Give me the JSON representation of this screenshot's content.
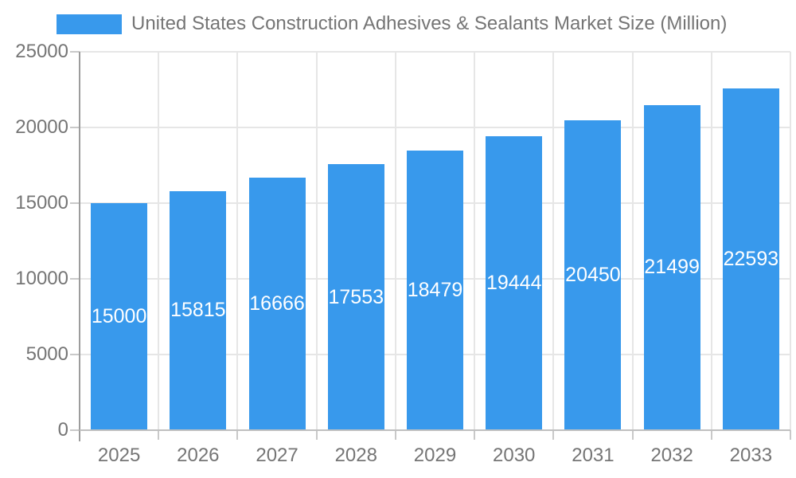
{
  "legend": {
    "label": "United States Construction Adhesives & Sealants Market Size (Million)"
  },
  "chart_data": {
    "type": "bar",
    "title": "United States Construction Adhesives & Sealants Market Size (Million)",
    "categories": [
      "2025",
      "2026",
      "2027",
      "2028",
      "2029",
      "2030",
      "2031",
      "2032",
      "2033"
    ],
    "values": [
      15000,
      15815,
      16666,
      17553,
      18479,
      19444,
      20450,
      21499,
      22593
    ],
    "bar_labels": [
      "15000",
      "15815",
      "16666",
      "17553",
      "18479",
      "19444",
      "20450",
      "21499",
      "22593"
    ],
    "xlabel": "",
    "ylabel": "",
    "ylim": [
      0,
      25000
    ],
    "yticks": [
      0,
      5000,
      10000,
      15000,
      20000,
      25000
    ],
    "ytick_labels": [
      "0",
      "5000",
      "10000",
      "15000",
      "20000",
      "25000"
    ],
    "grid": true,
    "legend_position": "top",
    "colors": {
      "bar": "#3899ec",
      "bar_label": "#ffffff",
      "axis_text": "#757575",
      "gridline": "#e6e6e6",
      "y_axis_line": "#9c9c9c",
      "x_axis_line": "#c0c0c0",
      "tick": "#c9c9c9"
    }
  }
}
